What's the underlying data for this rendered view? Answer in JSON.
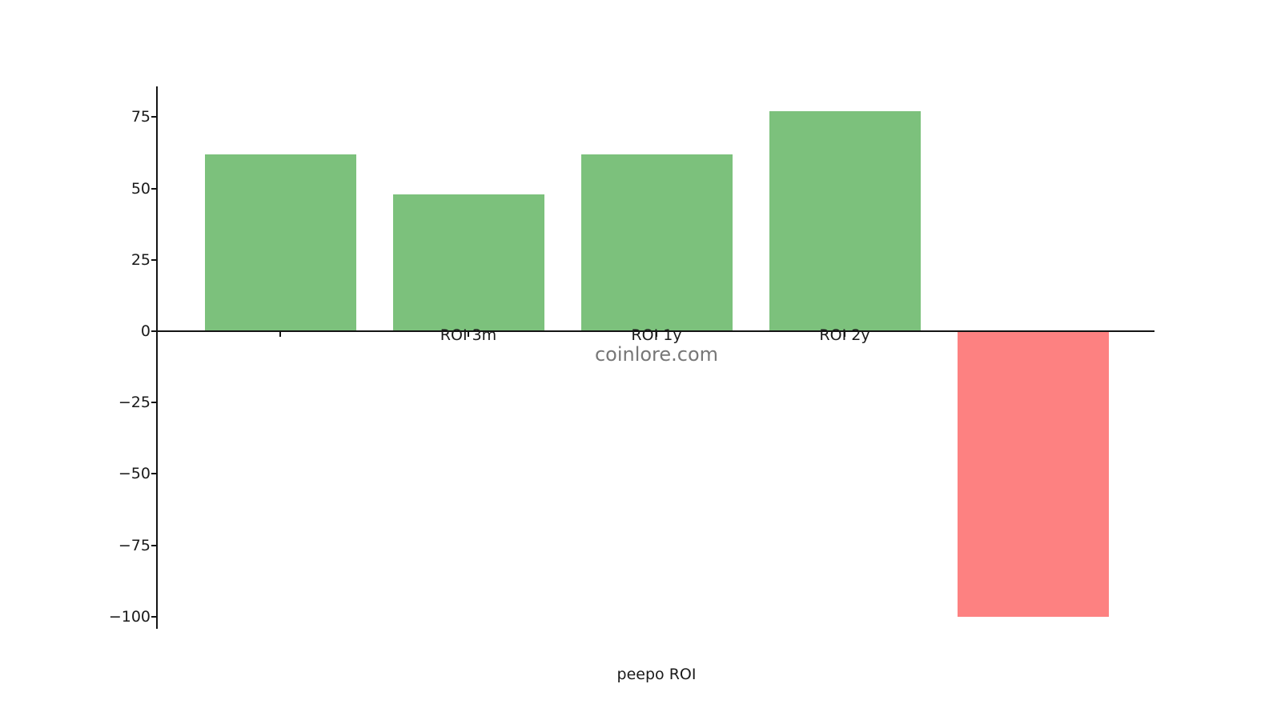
{
  "watermark": "coinlore.com",
  "colors": {
    "background": "#ffffff",
    "axis": "#141414",
    "text": "#1a1a1a",
    "watermark_text": "#777777",
    "positive_bar": "#7cc17c",
    "negative_bar": "#fd8181"
  },
  "chart_data": {
    "type": "bar",
    "title": "",
    "xlabel": "peepo ROI",
    "ylabel": "",
    "categories": [
      "",
      "ROI 3m",
      "ROI 1y",
      "ROI 2y",
      ""
    ],
    "values": [
      62,
      48,
      62,
      77,
      -100
    ],
    "bar_colors": [
      "#7cc17c",
      "#7cc17c",
      "#7cc17c",
      "#7cc17c",
      "#fd8181"
    ],
    "x_tick_visible": [
      true,
      true,
      true,
      true,
      false
    ],
    "yticks": [
      75,
      50,
      25,
      0,
      -25,
      -50,
      -75,
      -100
    ],
    "ylim": [
      -104,
      86
    ],
    "grid": false,
    "legend": null,
    "annotations": [
      "coinlore.com"
    ]
  }
}
